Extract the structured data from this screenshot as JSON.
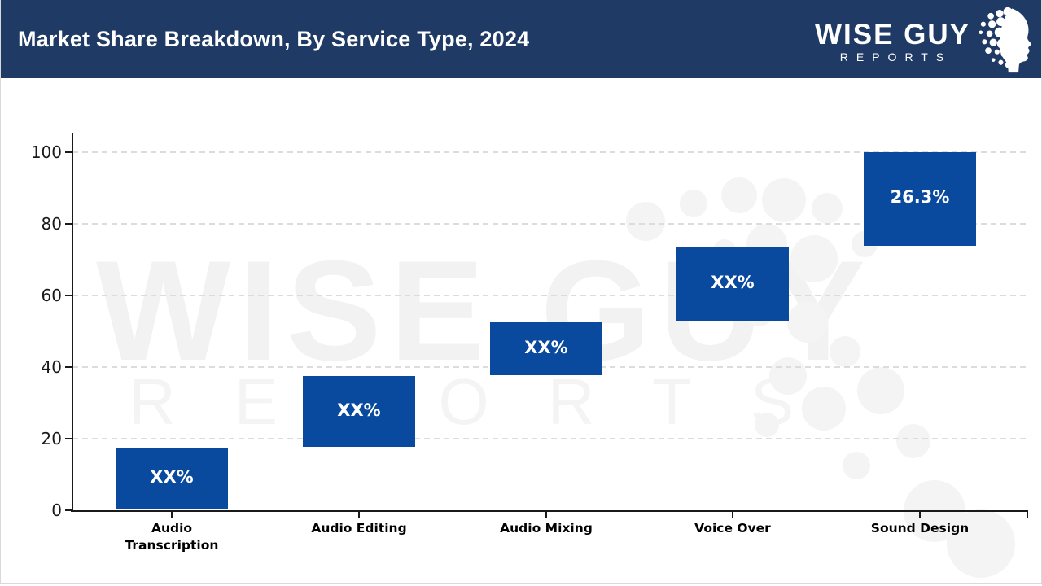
{
  "header": {
    "title": "Market Share Breakdown, By Service Type, 2024",
    "logo": {
      "primary": "WISE GUY",
      "secondary": "REPORTS"
    }
  },
  "watermark": {
    "primary": "WISE GUY",
    "secondary": "REPORTS"
  },
  "colors": {
    "header_bg": "#203a66",
    "bar": "#0a4a9e",
    "bar_label": "#ffffff",
    "grid": "#dcdcdc",
    "axis": "#1a1a1a",
    "watermark_text": "#f2f2f2",
    "watermark_dots": "#f4f4f4"
  },
  "chart_data": {
    "type": "bar",
    "subtype": "waterfall (floating stacked-step bars)",
    "title": "Market Share Breakdown, By Service Type, 2024",
    "categories": [
      "Audio Transcription",
      "Audio Editing",
      "Audio Mixing",
      "Voice Over",
      "Sound Design"
    ],
    "values": [
      17.4,
      20.1,
      14.9,
      21.3,
      26.3
    ],
    "segment_starts": [
      0,
      17.4,
      37.5,
      52.4,
      73.7
    ],
    "segment_ends": [
      17.4,
      37.5,
      52.4,
      73.7,
      100
    ],
    "bar_labels": [
      "XX%",
      "XX%",
      "XX%",
      "XX%",
      "26.3%"
    ],
    "xlabel": "",
    "ylabel": "",
    "ylim": [
      0,
      100
    ],
    "yticks": [
      0,
      20,
      40,
      60,
      80,
      100
    ],
    "grid": "horizontal dashed",
    "legend": "none"
  }
}
